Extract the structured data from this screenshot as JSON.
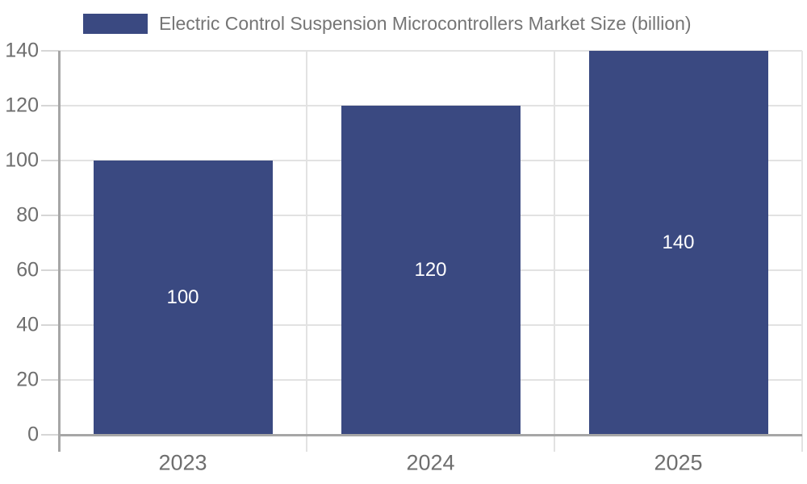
{
  "chart_data": {
    "type": "bar",
    "title": "",
    "legend_label": "Electric Control Suspension Microcontrollers Market Size (billion)",
    "legend_position": "top",
    "categories": [
      "2023",
      "2024",
      "2025"
    ],
    "series": [
      {
        "name": "Electric Control Suspension Microcontrollers Market Size (billion)",
        "values": [
          100,
          120,
          140
        ],
        "data_labels": [
          "100",
          "120",
          "140"
        ]
      }
    ],
    "xlabel": "",
    "ylabel": "",
    "ylim": [
      0,
      140
    ],
    "yticks": [
      0,
      20,
      40,
      60,
      80,
      100,
      120,
      140
    ],
    "grid": true,
    "colors": {
      "bar": "#3A4981",
      "grid_line": "#e2e2e2",
      "axis_line": "#a6a6a6",
      "tick_label": "#6e6e6e",
      "legend_text": "#757575",
      "value_label": "#ffffff",
      "background": "#ffffff"
    }
  }
}
